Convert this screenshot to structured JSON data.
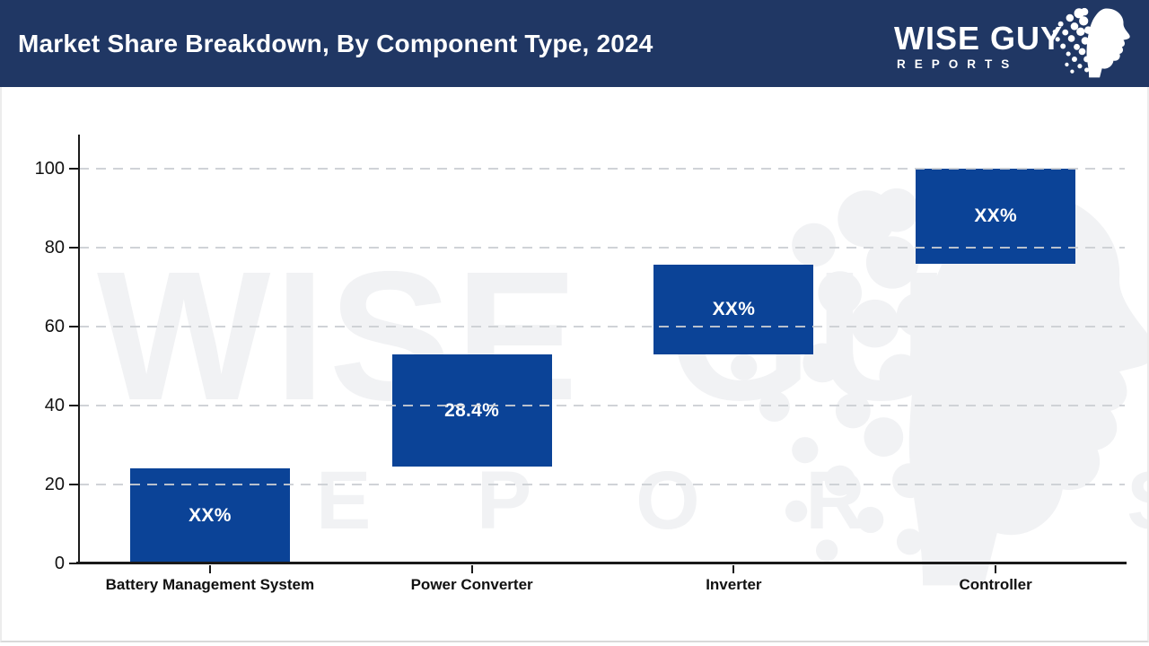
{
  "header": {
    "title": "Market Share Breakdown, By Component Type, 2024",
    "logo": {
      "line1": "WISE GUY",
      "line2": "REPORTS",
      "icon": "wise-guy-face-logo"
    },
    "bg_color": "#203764",
    "text_color": "#ffffff"
  },
  "watermark": {
    "line1": "WISE GUY",
    "line2": "R E P O R T S",
    "icon": "wise-guy-face-watermark",
    "color": "#f1f2f4"
  },
  "chart_data": {
    "type": "bar",
    "subtype": "floating-waterfall-segments",
    "title": "Market Share Breakdown, By Component Type, 2024",
    "xlabel": "",
    "ylabel": "",
    "categories": [
      "Battery Management System",
      "Power Converter",
      "Inverter",
      "Controller"
    ],
    "bars": [
      {
        "category": "Battery Management System",
        "start": 0,
        "end": 24,
        "height": 24,
        "label": "XX%"
      },
      {
        "category": "Power Converter",
        "start": 24.5,
        "end": 52.9,
        "height": 28.4,
        "label": "28.4%"
      },
      {
        "category": "Inverter",
        "start": 53,
        "end": 75.7,
        "height": 22.7,
        "label": "XX%"
      },
      {
        "category": "Controller",
        "start": 76,
        "end": 100,
        "height": 24,
        "label": "XX%"
      }
    ],
    "yticks": [
      0,
      20,
      40,
      60,
      80,
      100
    ],
    "ylim": [
      0,
      108
    ],
    "grid": "dashed horizontal gridlines at y ticks, drawn over bars",
    "legend": "none",
    "bar_color": "#0b4397",
    "bar_label_color": "#ffffff",
    "axis_color": "#1a1a1a",
    "tick_label_color": "#111111",
    "gridline_color": "#cbced3"
  }
}
